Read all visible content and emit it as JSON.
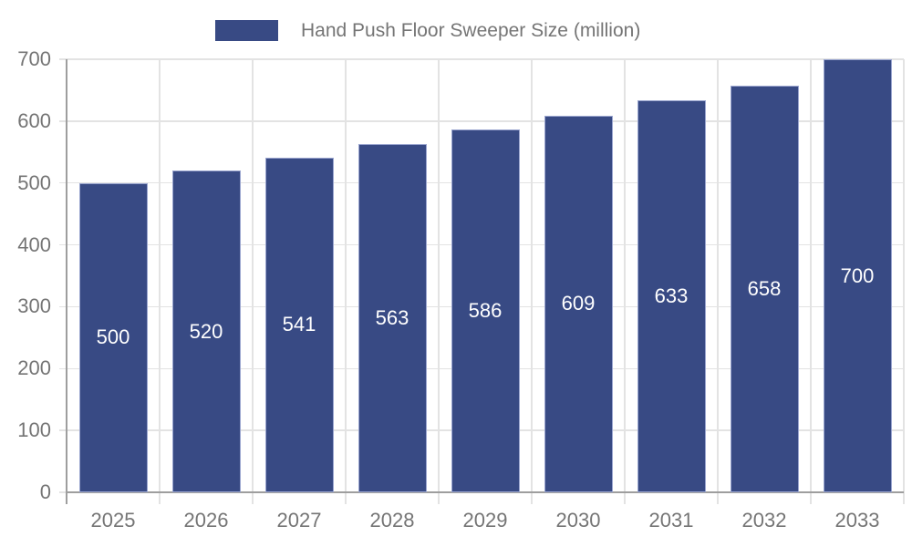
{
  "colors": {
    "bar": "#384a84",
    "bar_edge": "#9aa5cf",
    "grid": "#e3e3e3",
    "axis": "#9e9e9e",
    "tick_text": "#757575",
    "value_text": "#ffffff",
    "legend_text": "#757575",
    "background": "#ffffff"
  },
  "chart_data": {
    "type": "bar",
    "title": "",
    "legend": "Hand Push Floor Sweeper Size (million)",
    "legend_position": "top",
    "categories": [
      "2025",
      "2026",
      "2027",
      "2028",
      "2029",
      "2030",
      "2031",
      "2032",
      "2033"
    ],
    "values": [
      500,
      520,
      541,
      563,
      586,
      609,
      633,
      658,
      700
    ],
    "xlabel": "",
    "ylabel": "",
    "ylim": [
      0,
      700
    ],
    "yticks": [
      0,
      100,
      200,
      300,
      400,
      500,
      600,
      700
    ],
    "grid": true,
    "value_labels": "inside-center"
  }
}
